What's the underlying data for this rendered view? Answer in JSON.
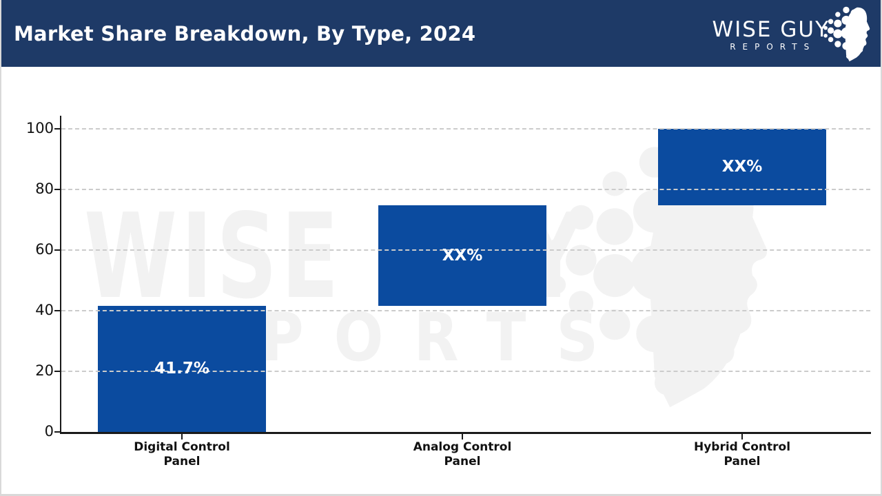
{
  "header": {
    "title": "Market Share Breakdown, By Type, 2024",
    "logo": {
      "line1": "WISE GUY",
      "line2": "REPORTS"
    }
  },
  "watermark": {
    "line1": "WISE GUY",
    "line2": "REPORTS"
  },
  "colors": {
    "header_bg": "#1e3a67",
    "bar": "#0b4b9f",
    "grid": "#cbcbcb",
    "axis": "#1a1a1a",
    "bar_label": "#ffffff",
    "watermark": "#f2f2f2"
  },
  "chart_data": {
    "type": "bar",
    "subtype": "waterfall",
    "title": "Market Share Breakdown, By Type, 2024",
    "categories": [
      "Digital Control\nPanel",
      "Analog Control\nPanel",
      "Hybrid Control\nPanel"
    ],
    "segments": [
      {
        "category": "Digital Control Panel",
        "start": 0,
        "end": 41.7,
        "label": "41.7%"
      },
      {
        "category": "Analog Control Panel",
        "start": 41.7,
        "end": 74.8,
        "label": "XX%"
      },
      {
        "category": "Hybrid Control Panel",
        "start": 74.8,
        "end": 100,
        "label": "XX%"
      }
    ],
    "yticks": [
      0,
      20,
      40,
      60,
      80,
      100
    ],
    "ylim": [
      0,
      104
    ],
    "xlabel": "",
    "ylabel": "",
    "grid": "horizontal-dashed",
    "legend": "none",
    "bar_color": "#0b4b9f",
    "bar_label_color": "#ffffff"
  }
}
